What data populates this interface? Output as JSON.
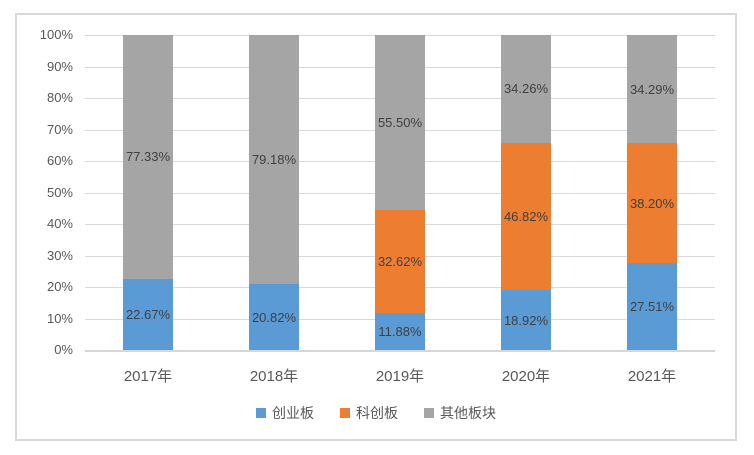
{
  "chart_data": {
    "type": "bar",
    "subtype": "stacked-100-percent",
    "categories": [
      "2017年",
      "2018年",
      "2019年",
      "2020年",
      "2021年"
    ],
    "series": [
      {
        "name": "创业板",
        "color": "#5B9BD5",
        "values": [
          22.67,
          20.82,
          11.88,
          18.92,
          27.51
        ],
        "labels": [
          "22.67%",
          "20.82%",
          "11.88%",
          "18.92%",
          "27.51%"
        ]
      },
      {
        "name": "科创板",
        "color": "#ED7D31",
        "values": [
          0,
          0,
          32.62,
          46.82,
          38.2
        ],
        "labels": [
          "",
          "",
          "32.62%",
          "46.82%",
          "38.20%"
        ]
      },
      {
        "name": "其他板块",
        "color": "#A5A5A5",
        "values": [
          77.33,
          79.18,
          55.5,
          34.26,
          34.29
        ],
        "labels": [
          "77.33%",
          "79.18%",
          "55.50%",
          "34.26%",
          "34.29%"
        ]
      }
    ],
    "title": "",
    "xlabel": "",
    "ylabel": "",
    "ylim": [
      0,
      100
    ],
    "yticks": [
      "0%",
      "10%",
      "20%",
      "30%",
      "40%",
      "50%",
      "60%",
      "70%",
      "80%",
      "90%",
      "100%"
    ],
    "grid": true,
    "legend_position": "bottom",
    "colors": {
      "gridline": "#D9D9D9",
      "frame_border": "#D9D9D9",
      "axis_text": "#595959",
      "value_label_text": "#404040",
      "background": "#FFFFFF"
    }
  }
}
